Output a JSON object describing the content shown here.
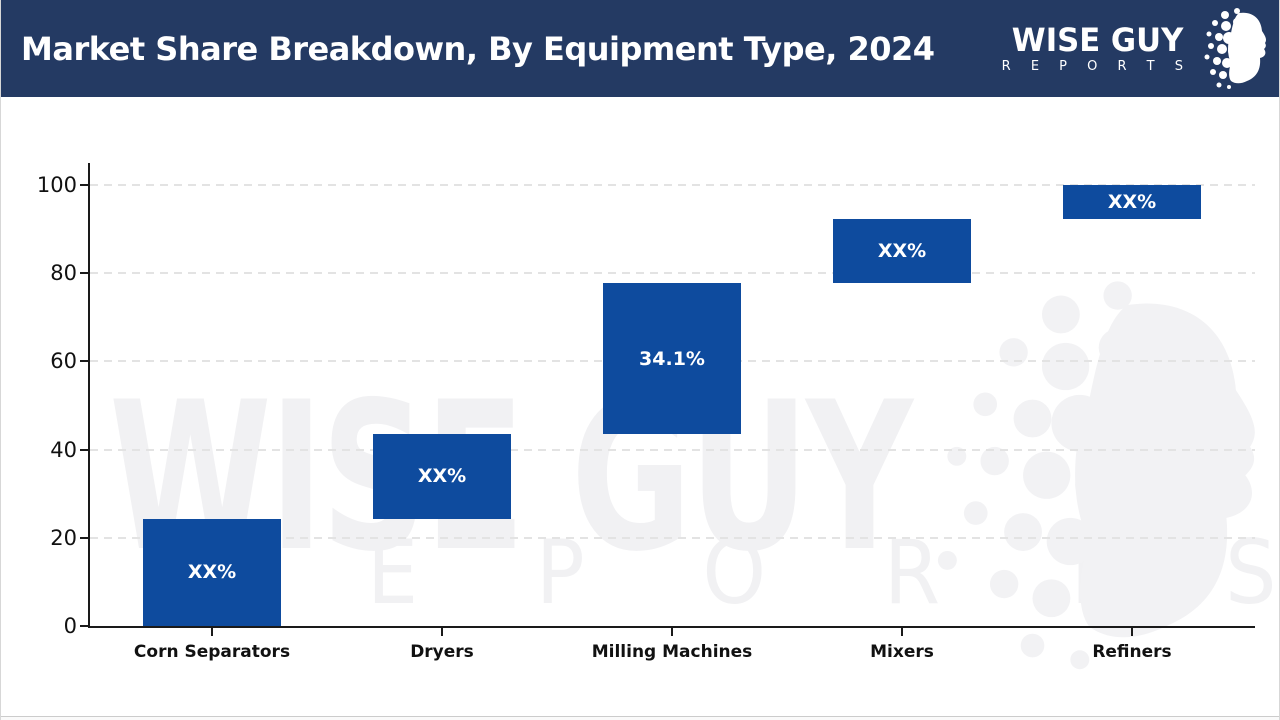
{
  "header": {
    "title": "Market Share Breakdown, By Equipment Type, 2024",
    "logo": {
      "line1": "WISE GUY",
      "line2": "R E P O R T S"
    },
    "bg_color": "#243a63"
  },
  "watermark": {
    "line1": "WISE GUY",
    "line2": "R E P O R T S"
  },
  "icons": {
    "logo_face": "dotted-head-profile-icon"
  },
  "chart_data": {
    "type": "bar",
    "variant": "waterfall",
    "title": "Market Share Breakdown, By Equipment Type, 2024",
    "categories": [
      "Corn Separators",
      "Dryers",
      "Milling Machines",
      "Mixers",
      "Refiners"
    ],
    "segments": [
      {
        "category": "Corn Separators",
        "start": 0,
        "end": 24.3,
        "value": 24.3,
        "label": "XX%"
      },
      {
        "category": "Dryers",
        "start": 24.3,
        "end": 43.6,
        "value": 19.3,
        "label": "XX%"
      },
      {
        "category": "Milling Machines",
        "start": 43.6,
        "end": 77.7,
        "value": 34.1,
        "label": "34.1%"
      },
      {
        "category": "Mixers",
        "start": 77.7,
        "end": 92.2,
        "value": 14.5,
        "label": "XX%"
      },
      {
        "category": "Refiners",
        "start": 92.2,
        "end": 100,
        "value": 7.8,
        "label": "XX%"
      }
    ],
    "xlabel": "",
    "ylabel": "",
    "ylim": [
      0,
      100
    ],
    "yticks": [
      0,
      20,
      40,
      60,
      80,
      100
    ],
    "grid": "horizontal-dashed",
    "legend": "none",
    "bar_color": "#0e4b9e",
    "bar_label_color": "#ffffff",
    "axis_color": "#1a1a1a",
    "gridline_color": "#e3e3e3"
  }
}
